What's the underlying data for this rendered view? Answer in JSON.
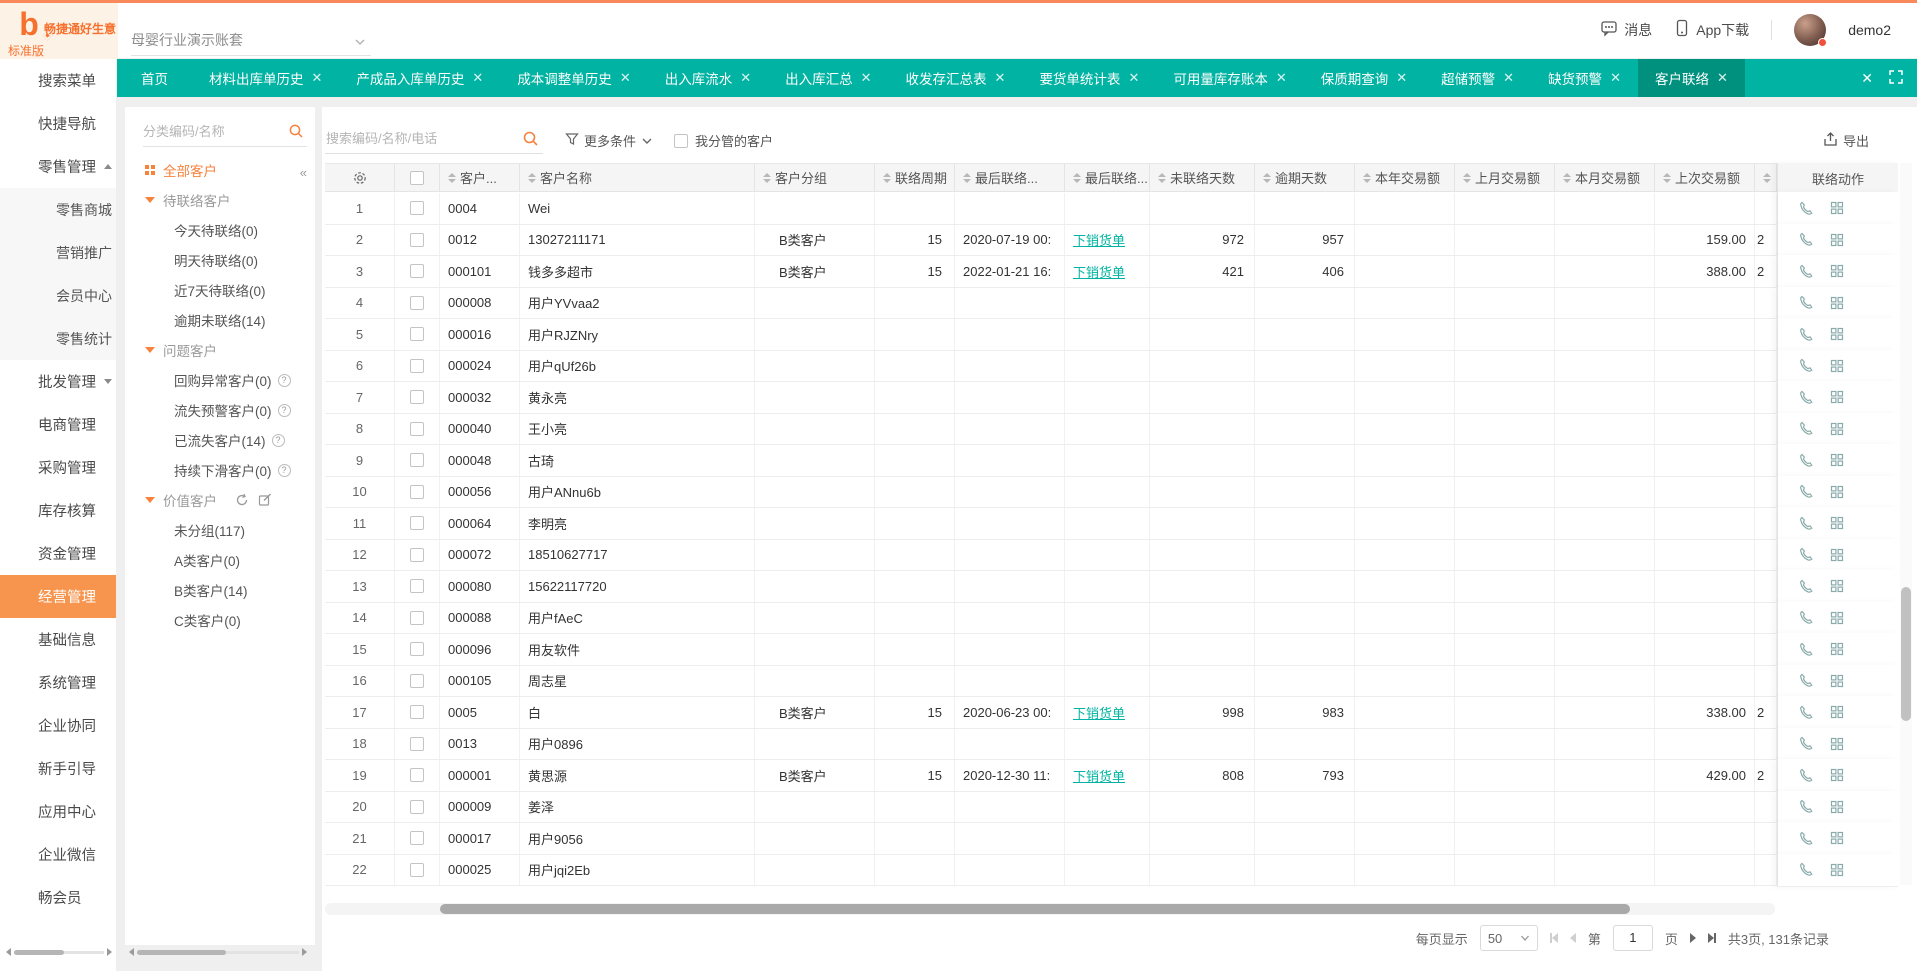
{
  "topbar": {
    "brand": "畅捷通好生意",
    "edition": "标准版",
    "account": "母婴行业演示账套",
    "messages": "消息",
    "app_download": "App下载",
    "user": "demo2"
  },
  "tabs": [
    {
      "label": "首页",
      "closable": false,
      "active": false
    },
    {
      "label": "材料出库单历史",
      "closable": true,
      "active": false
    },
    {
      "label": "产成品入库单历史",
      "closable": true,
      "active": false
    },
    {
      "label": "成本调整单历史",
      "closable": true,
      "active": false
    },
    {
      "label": "出入库流水",
      "closable": true,
      "active": false
    },
    {
      "label": "出入库汇总",
      "closable": true,
      "active": false
    },
    {
      "label": "收发存汇总表",
      "closable": true,
      "active": false
    },
    {
      "label": "要货单统计表",
      "closable": true,
      "active": false
    },
    {
      "label": "可用量库存账本",
      "closable": true,
      "active": false
    },
    {
      "label": "保质期查询",
      "closable": true,
      "active": false
    },
    {
      "label": "超储预警",
      "closable": true,
      "active": false
    },
    {
      "label": "缺货预警",
      "closable": true,
      "active": false
    },
    {
      "label": "客户联络",
      "closable": true,
      "active": true
    }
  ],
  "sidebar": {
    "items": [
      {
        "label": "搜索菜单"
      },
      {
        "label": "快捷导航"
      },
      {
        "label": "零售管理",
        "arrow": "up"
      },
      {
        "label": "零售商城",
        "sub": true
      },
      {
        "label": "营销推广",
        "sub": true
      },
      {
        "label": "会员中心",
        "sub": true
      },
      {
        "label": "零售统计",
        "sub": true
      },
      {
        "label": "批发管理",
        "arrow": "down"
      },
      {
        "label": "电商管理"
      },
      {
        "label": "采购管理"
      },
      {
        "label": "库存核算"
      },
      {
        "label": "资金管理"
      },
      {
        "label": "经营管理",
        "active": true
      },
      {
        "label": "基础信息"
      },
      {
        "label": "系统管理"
      },
      {
        "label": "企业协同"
      },
      {
        "label": "新手引导"
      },
      {
        "label": "应用中心"
      },
      {
        "label": "企业微信"
      },
      {
        "label": "畅会员"
      }
    ]
  },
  "tree": {
    "search_placeholder": "分类编码/名称",
    "items": [
      {
        "label": "全部客户",
        "type": "all"
      },
      {
        "label": "待联络客户",
        "type": "group"
      },
      {
        "label": "今天待联络(0)",
        "type": "child"
      },
      {
        "label": "明天待联络(0)",
        "type": "child"
      },
      {
        "label": "近7天待联络(0)",
        "type": "child"
      },
      {
        "label": "逾期未联络(14)",
        "type": "child"
      },
      {
        "label": "问题客户",
        "type": "group"
      },
      {
        "label": "回购异常客户(0)",
        "type": "child",
        "info": true
      },
      {
        "label": "流失预警客户(0)",
        "type": "child",
        "info": true
      },
      {
        "label": "已流失客户(14)",
        "type": "child",
        "info": true
      },
      {
        "label": "持续下滑客户(0)",
        "type": "child",
        "info": true
      },
      {
        "label": "价值客户",
        "type": "group",
        "tools": true
      },
      {
        "label": "未分组(117)",
        "type": "child"
      },
      {
        "label": "A类客户(0)",
        "type": "child"
      },
      {
        "label": "B类客户(14)",
        "type": "child"
      },
      {
        "label": "C类客户(0)",
        "type": "child"
      }
    ]
  },
  "toolbar": {
    "search_placeholder": "搜索编码/名称/电话",
    "more_filters": "更多条件",
    "my_customers": "我分管的客户",
    "export_label": "导出"
  },
  "table": {
    "columns": [
      "客户...",
      "客户名称",
      "客户分组",
      "联络周期",
      "最后联络...",
      "最后联络...",
      "未联络天数",
      "逾期天数",
      "本年交易额",
      "上月交易额",
      "本月交易额",
      "上次交易额"
    ],
    "action_column": "联络动作",
    "rows": [
      {
        "idx": "1",
        "code": "0004",
        "name": "Wei",
        "group": "",
        "cycle": "",
        "last_date": "",
        "last_doc": "",
        "uncontacted": "",
        "overdue": "",
        "year_amt": "",
        "last_month_amt": "",
        "this_month_amt": "",
        "last_txn": "",
        "clipped": ""
      },
      {
        "idx": "2",
        "code": "0012",
        "name": "13027211171",
        "group": "B类客户",
        "cycle": "15",
        "last_date": "2020-07-19 00:",
        "last_doc": "下销货单",
        "uncontacted": "972",
        "overdue": "957",
        "year_amt": "",
        "last_month_amt": "",
        "this_month_amt": "",
        "last_txn": "159.00",
        "clipped": "2"
      },
      {
        "idx": "3",
        "code": "000101",
        "name": "钱多多超市",
        "group": "B类客户",
        "cycle": "15",
        "last_date": "2022-01-21 16:",
        "last_doc": "下销货单",
        "uncontacted": "421",
        "overdue": "406",
        "year_amt": "",
        "last_month_amt": "",
        "this_month_amt": "",
        "last_txn": "388.00",
        "clipped": "2"
      },
      {
        "idx": "4",
        "code": "000008",
        "name": "用户YVvaa2",
        "group": "",
        "cycle": "",
        "last_date": "",
        "last_doc": "",
        "uncontacted": "",
        "overdue": "",
        "year_amt": "",
        "last_month_amt": "",
        "this_month_amt": "",
        "last_txn": "",
        "clipped": ""
      },
      {
        "idx": "5",
        "code": "000016",
        "name": "用户RJZNry",
        "group": "",
        "cycle": "",
        "last_date": "",
        "last_doc": "",
        "uncontacted": "",
        "overdue": "",
        "year_amt": "",
        "last_month_amt": "",
        "this_month_amt": "",
        "last_txn": "",
        "clipped": ""
      },
      {
        "idx": "6",
        "code": "000024",
        "name": "用户qUf26b",
        "group": "",
        "cycle": "",
        "last_date": "",
        "last_doc": "",
        "uncontacted": "",
        "overdue": "",
        "year_amt": "",
        "last_month_amt": "",
        "this_month_amt": "",
        "last_txn": "",
        "clipped": ""
      },
      {
        "idx": "7",
        "code": "000032",
        "name": "黄永亮",
        "group": "",
        "cycle": "",
        "last_date": "",
        "last_doc": "",
        "uncontacted": "",
        "overdue": "",
        "year_amt": "",
        "last_month_amt": "",
        "this_month_amt": "",
        "last_txn": "",
        "clipped": ""
      },
      {
        "idx": "8",
        "code": "000040",
        "name": "王小亮",
        "group": "",
        "cycle": "",
        "last_date": "",
        "last_doc": "",
        "uncontacted": "",
        "overdue": "",
        "year_amt": "",
        "last_month_amt": "",
        "this_month_amt": "",
        "last_txn": "",
        "clipped": ""
      },
      {
        "idx": "9",
        "code": "000048",
        "name": "古琦",
        "group": "",
        "cycle": "",
        "last_date": "",
        "last_doc": "",
        "uncontacted": "",
        "overdue": "",
        "year_amt": "",
        "last_month_amt": "",
        "this_month_amt": "",
        "last_txn": "",
        "clipped": ""
      },
      {
        "idx": "10",
        "code": "000056",
        "name": "用户ANnu6b",
        "group": "",
        "cycle": "",
        "last_date": "",
        "last_doc": "",
        "uncontacted": "",
        "overdue": "",
        "year_amt": "",
        "last_month_amt": "",
        "this_month_amt": "",
        "last_txn": "",
        "clipped": ""
      },
      {
        "idx": "11",
        "code": "000064",
        "name": "李明亮",
        "group": "",
        "cycle": "",
        "last_date": "",
        "last_doc": "",
        "uncontacted": "",
        "overdue": "",
        "year_amt": "",
        "last_month_amt": "",
        "this_month_amt": "",
        "last_txn": "",
        "clipped": ""
      },
      {
        "idx": "12",
        "code": "000072",
        "name": "18510627717",
        "group": "",
        "cycle": "",
        "last_date": "",
        "last_doc": "",
        "uncontacted": "",
        "overdue": "",
        "year_amt": "",
        "last_month_amt": "",
        "this_month_amt": "",
        "last_txn": "",
        "clipped": ""
      },
      {
        "idx": "13",
        "code": "000080",
        "name": "15622117720",
        "group": "",
        "cycle": "",
        "last_date": "",
        "last_doc": "",
        "uncontacted": "",
        "overdue": "",
        "year_amt": "",
        "last_month_amt": "",
        "this_month_amt": "",
        "last_txn": "",
        "clipped": ""
      },
      {
        "idx": "14",
        "code": "000088",
        "name": "用户fAeC",
        "group": "",
        "cycle": "",
        "last_date": "",
        "last_doc": "",
        "uncontacted": "",
        "overdue": "",
        "year_amt": "",
        "last_month_amt": "",
        "this_month_amt": "",
        "last_txn": "",
        "clipped": ""
      },
      {
        "idx": "15",
        "code": "000096",
        "name": "用友软件",
        "group": "",
        "cycle": "",
        "last_date": "",
        "last_doc": "",
        "uncontacted": "",
        "overdue": "",
        "year_amt": "",
        "last_month_amt": "",
        "this_month_amt": "",
        "last_txn": "",
        "clipped": ""
      },
      {
        "idx": "16",
        "code": "000105",
        "name": "周志星",
        "group": "",
        "cycle": "",
        "last_date": "",
        "last_doc": "",
        "uncontacted": "",
        "overdue": "",
        "year_amt": "",
        "last_month_amt": "",
        "this_month_amt": "",
        "last_txn": "",
        "clipped": ""
      },
      {
        "idx": "17",
        "code": "0005",
        "name": "白",
        "group": "B类客户",
        "cycle": "15",
        "last_date": "2020-06-23 00:",
        "last_doc": "下销货单",
        "uncontacted": "998",
        "overdue": "983",
        "year_amt": "",
        "last_month_amt": "",
        "this_month_amt": "",
        "last_txn": "338.00",
        "clipped": "2"
      },
      {
        "idx": "18",
        "code": "0013",
        "name": "用户0896",
        "group": "",
        "cycle": "",
        "last_date": "",
        "last_doc": "",
        "uncontacted": "",
        "overdue": "",
        "year_amt": "",
        "last_month_amt": "",
        "this_month_amt": "",
        "last_txn": "",
        "clipped": ""
      },
      {
        "idx": "19",
        "code": "000001",
        "name": "黄思源",
        "group": "B类客户",
        "cycle": "15",
        "last_date": "2020-12-30 11:",
        "last_doc": "下销货单",
        "uncontacted": "808",
        "overdue": "793",
        "year_amt": "",
        "last_month_amt": "",
        "this_month_amt": "",
        "last_txn": "429.00",
        "clipped": "2"
      },
      {
        "idx": "20",
        "code": "000009",
        "name": "姜泽",
        "group": "",
        "cycle": "",
        "last_date": "",
        "last_doc": "",
        "uncontacted": "",
        "overdue": "",
        "year_amt": "",
        "last_month_amt": "",
        "this_month_amt": "",
        "last_txn": "",
        "clipped": ""
      },
      {
        "idx": "21",
        "code": "000017",
        "name": "用户9056",
        "group": "",
        "cycle": "",
        "last_date": "",
        "last_doc": "",
        "uncontacted": "",
        "overdue": "",
        "year_amt": "",
        "last_month_amt": "",
        "this_month_amt": "",
        "last_txn": "",
        "clipped": ""
      },
      {
        "idx": "22",
        "code": "000025",
        "name": "用户jqi2Eb",
        "group": "",
        "cycle": "",
        "last_date": "",
        "last_doc": "",
        "uncontacted": "",
        "overdue": "",
        "year_amt": "",
        "last_month_amt": "",
        "this_month_amt": "",
        "last_txn": "",
        "clipped": ""
      }
    ]
  },
  "pagination": {
    "per_page_label": "每页显示",
    "per_page": "50",
    "page_prefix": "第",
    "page": "1",
    "page_suffix": "页",
    "total": "共3页, 131条记录"
  },
  "colors": {
    "teal": "#01b3a2",
    "teal_dark": "#00917e",
    "orange": "#f7823c",
    "sidebar_active": "#f7944d"
  }
}
